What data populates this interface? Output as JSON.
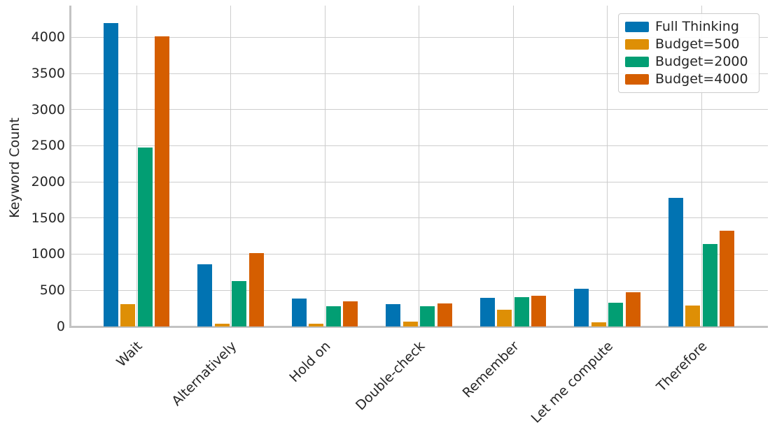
{
  "chart_data": {
    "type": "bar",
    "title": "",
    "xlabel": "",
    "ylabel": "Keyword Count",
    "categories": [
      "Wait",
      "Alternatively",
      "Hold on",
      "Double-check",
      "Remember",
      "Let me compute",
      "Therefore"
    ],
    "series": [
      {
        "name": "Full Thinking",
        "color": "#0173b2",
        "values": [
          4200,
          860,
          385,
          305,
          390,
          525,
          1780
        ]
      },
      {
        "name": "Budget=500",
        "color": "#de8f05",
        "values": [
          310,
          35,
          40,
          70,
          230,
          60,
          290
        ]
      },
      {
        "name": "Budget=2000",
        "color": "#029e73",
        "values": [
          2480,
          630,
          280,
          275,
          405,
          330,
          1140
        ]
      },
      {
        "name": "Budget=4000",
        "color": "#d55e00",
        "values": [
          4010,
          1010,
          345,
          320,
          420,
          470,
          1320
        ]
      }
    ],
    "yticks": [
      0,
      500,
      1000,
      1500,
      2000,
      2500,
      3000,
      3500,
      4000
    ],
    "ylim": [
      0,
      4440
    ],
    "grid": true,
    "legend_position": "upper right"
  },
  "style_colors": {
    "background": "#ffffff",
    "gridline": "#cdcdcd",
    "spine": "#c3c3c3",
    "text": "#262626",
    "legend_border": "#cccccc"
  }
}
